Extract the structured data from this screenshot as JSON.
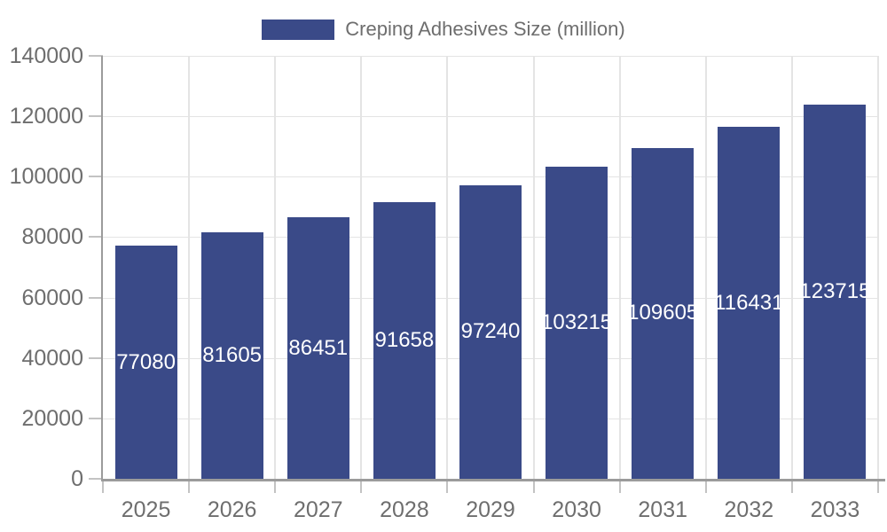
{
  "chart_data": {
    "type": "bar",
    "title": "",
    "legend": [
      "Creping Adhesives Size (million)"
    ],
    "legend_position": "top-center",
    "categories": [
      "2025",
      "2026",
      "2027",
      "2028",
      "2029",
      "2030",
      "2031",
      "2032",
      "2033"
    ],
    "series": [
      {
        "name": "Creping Adhesives Size (million)",
        "values": [
          77080,
          81605,
          86451,
          91658,
          97240,
          103215,
          109605,
          116431,
          123715
        ]
      }
    ],
    "xlabel": "",
    "ylabel": "",
    "ylim": [
      0,
      140000
    ],
    "ytick_interval": 20000,
    "ytick_labels": [
      "0",
      "20000",
      "40000",
      "60000",
      "80000",
      "100000",
      "120000",
      "140000"
    ],
    "grid": true,
    "value_label_position": "inside-center"
  },
  "colors": {
    "bar": "#3A4A88",
    "background": "#FFFFFF",
    "gridline": "#E4E4E4",
    "axis_line": "#9B9B9B",
    "tick": "#C3C3C3",
    "axis_label_text": "#6E6E6E",
    "legend_text": "#6E6E6E",
    "bar_label_text": "#FFFFFF"
  }
}
